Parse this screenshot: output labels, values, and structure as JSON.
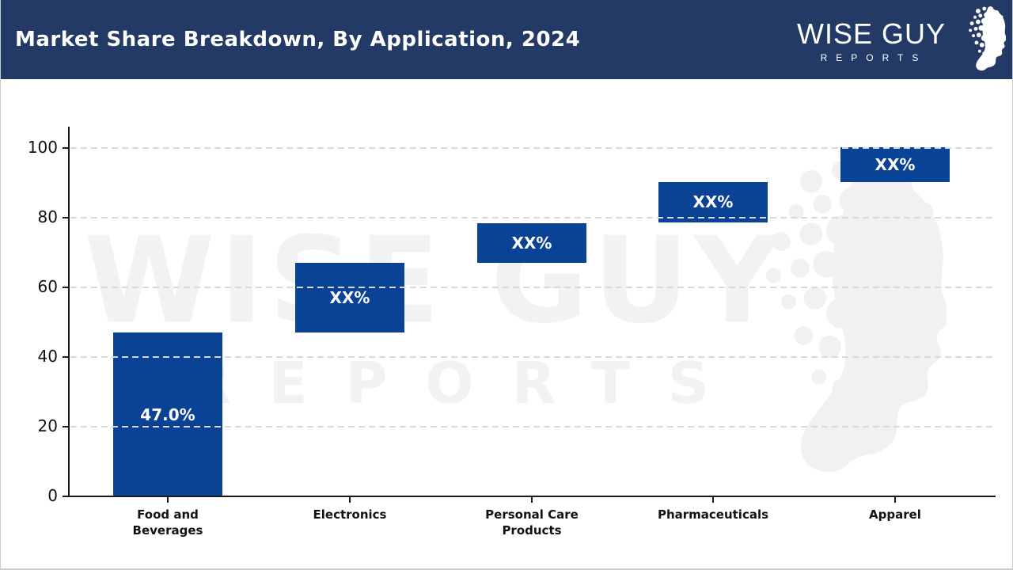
{
  "header": {
    "title": "Market Share Breakdown, By Application, 2024"
  },
  "logo": {
    "line1": "WISE GUY",
    "line2": "REPORTS"
  },
  "watermark": {
    "line1": "WISE GUY",
    "line2": "REPORTS"
  },
  "chart_data": {
    "type": "bar",
    "subtype": "waterfall",
    "title": "Market Share Breakdown, By Application, 2024",
    "categories": [
      "Food and Beverages",
      "Electronics",
      "Personal Care Products",
      "Pharmaceuticals",
      "Apparel"
    ],
    "series": [
      {
        "name": "Market share (%)",
        "segments": [
          {
            "category": "Food and Beverages",
            "start": 0,
            "end": 47,
            "label": "47.0%"
          },
          {
            "category": "Electronics",
            "start": 47,
            "end": 67,
            "label": "XX%"
          },
          {
            "category": "Personal Care Products",
            "start": 67,
            "end": 78.5,
            "label": "XX%"
          },
          {
            "category": "Pharmaceuticals",
            "start": 78.7,
            "end": 90.2,
            "label": "XX%"
          },
          {
            "category": "Apparel",
            "start": 90.2,
            "end": 100.2,
            "label": "XX%"
          }
        ]
      }
    ],
    "bar_labels": [
      "47.0%",
      "XX%",
      "XX%",
      "XX%",
      "XX%"
    ],
    "yticks": [
      0,
      20,
      40,
      60,
      80,
      100
    ],
    "ylim": [
      0,
      106
    ],
    "xlabel": "",
    "ylabel": "",
    "grid": "horizontal-dashed",
    "legend": "none",
    "colors": {
      "bar": "#0a4296",
      "bar_label": "#ffffff",
      "header_bg": "#223a65",
      "axis": "#1a1a1a",
      "gridline": "#d9d9d9",
      "watermark": "#f2f2f2"
    }
  }
}
